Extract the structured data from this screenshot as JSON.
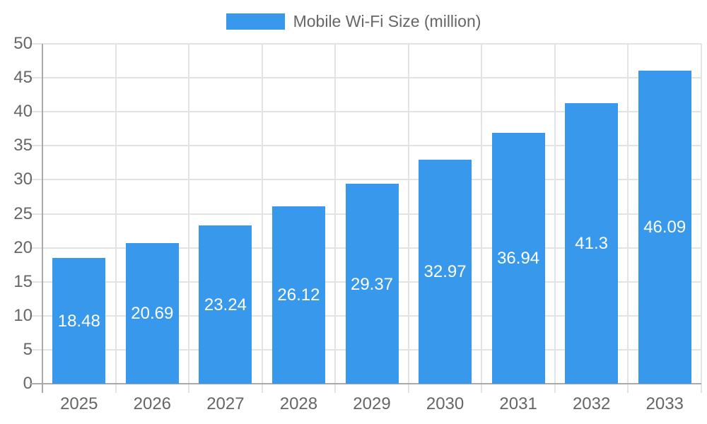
{
  "chart_data": {
    "type": "bar",
    "title": "",
    "legend": {
      "label": "Mobile Wi-Fi Size (million)",
      "position": "top"
    },
    "categories": [
      "2025",
      "2026",
      "2027",
      "2028",
      "2029",
      "2030",
      "2031",
      "2032",
      "2033"
    ],
    "series": [
      {
        "name": "Mobile Wi-Fi Size (million)",
        "values": [
          18.48,
          20.69,
          23.24,
          26.12,
          29.37,
          32.97,
          36.94,
          41.3,
          46.09
        ]
      }
    ],
    "value_labels": [
      "18.48",
      "20.69",
      "23.24",
      "26.12",
      "29.37",
      "32.97",
      "36.94",
      "41.3",
      "46.09"
    ],
    "xlabel": "",
    "ylabel": "",
    "ylim": [
      0,
      50
    ],
    "ytick_step": 5,
    "ytick_labels": [
      "0",
      "5",
      "10",
      "15",
      "20",
      "25",
      "30",
      "35",
      "40",
      "45",
      "50"
    ],
    "grid": true,
    "colors": {
      "bar": "#3899ec",
      "grid": "#e3e3e3",
      "axis_line": "#a9a9a9",
      "tick_text": "#666666",
      "value_label": "#ffffff",
      "legend_text": "#666666"
    }
  }
}
